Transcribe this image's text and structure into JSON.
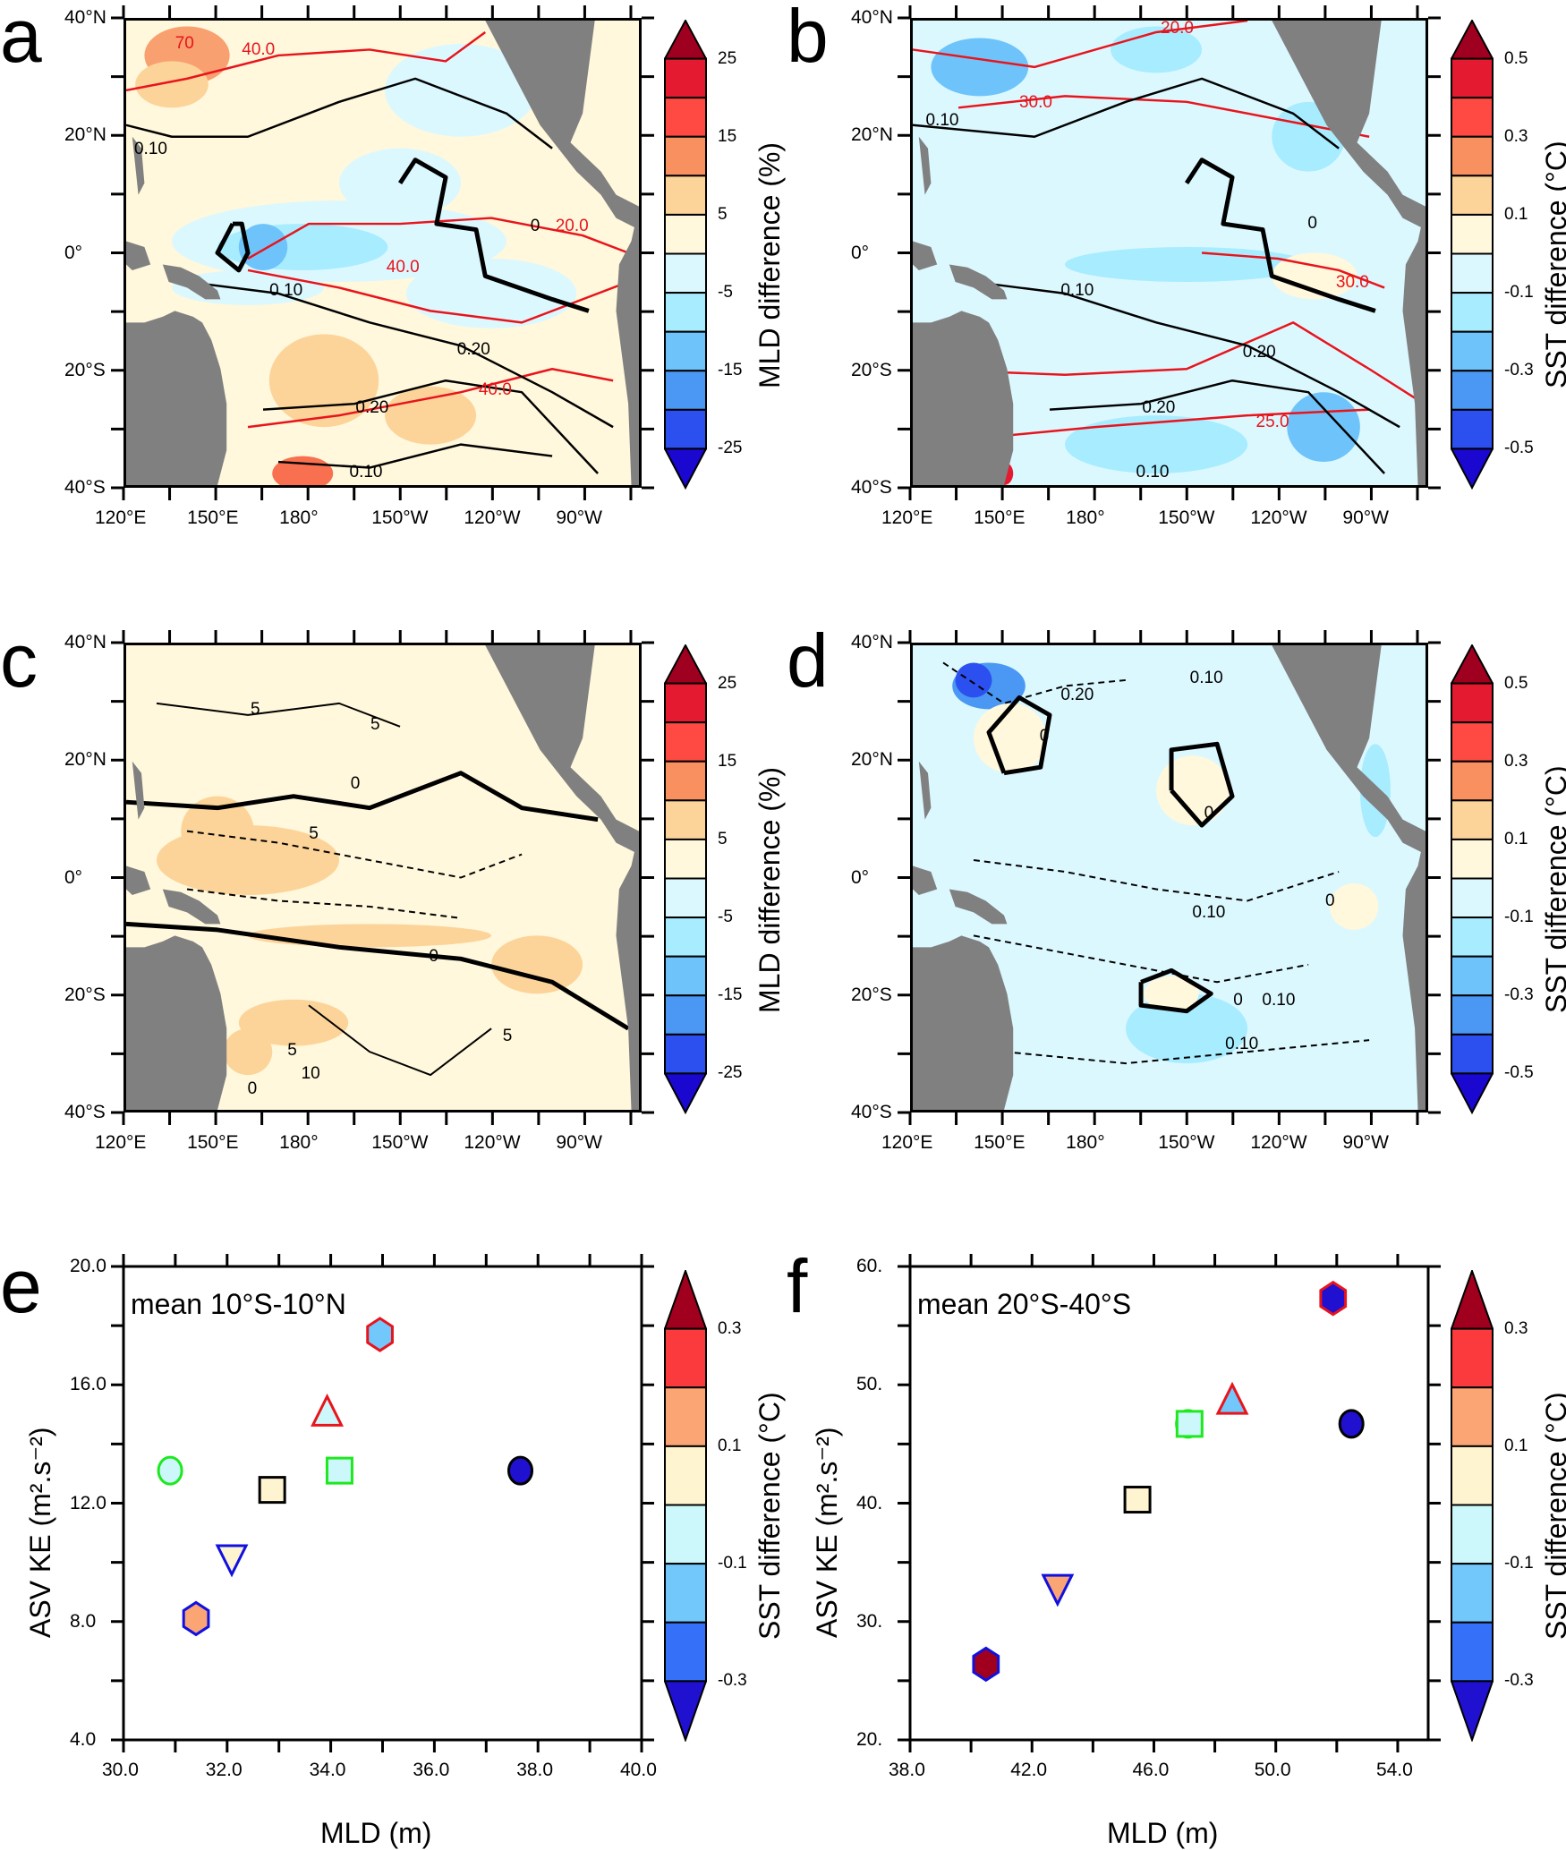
{
  "panels": {
    "a": {
      "letter": "a"
    },
    "b": {
      "letter": "b"
    },
    "c": {
      "letter": "c"
    },
    "d": {
      "letter": "d"
    },
    "e": {
      "letter": "e"
    },
    "f": {
      "letter": "f"
    }
  },
  "map_axes": {
    "lat_labels": [
      "40°N",
      "20°N",
      "0°",
      "20°S",
      "40°S"
    ],
    "lon_labels": [
      "120°E",
      "150°E",
      "180°",
      "150°W",
      "120°W",
      "90°W"
    ]
  },
  "colorbars": {
    "mld": {
      "title": "MLD difference (%)",
      "labels": [
        "25",
        "15",
        "5",
        "-5",
        "-15",
        "-25"
      ],
      "colors": [
        "#a00020",
        "#e31a30",
        "#ff4a44",
        "#f89060",
        "#fcd49a",
        "#fff8dc",
        "#dcf8ff",
        "#a8ecff",
        "#6ec4fa",
        "#4a98f4",
        "#2c50f0",
        "#1a08d0"
      ]
    },
    "sst_map": {
      "title": "SST difference (°C)",
      "labels": [
        "0.5",
        "0.3",
        "0.1",
        "-0.1",
        "-0.3",
        "-0.5"
      ],
      "colors": [
        "#a00020",
        "#e31a30",
        "#ff4a44",
        "#f89060",
        "#fcd49a",
        "#fff8dc",
        "#dcf8ff",
        "#a8ecff",
        "#6ec4fa",
        "#4a98f4",
        "#2c50f0",
        "#1a08d0"
      ]
    },
    "sst_scatter": {
      "title": "SST difference (°C)",
      "labels": [
        "0.3",
        "0.1",
        "-0.1",
        "-0.3"
      ],
      "colors": [
        "#a0001e",
        "#fb3a3e",
        "#fca574",
        "#fff4d0",
        "#ccf8fc",
        "#72c8fb",
        "#3570f8",
        "#2010d0"
      ]
    }
  },
  "contour_labels": {
    "a": [
      "70",
      "40.0",
      "0.10",
      "0",
      "20.0",
      "40.0",
      "0.10",
      "0.20",
      "40.0",
      "0.20",
      "0.10"
    ],
    "b": [
      "20.0",
      "0.10",
      "30.0",
      "0",
      "0.10",
      "30.0",
      "0.20",
      "0.20",
      "25.0",
      "0.10"
    ],
    "c": [
      "5",
      "5",
      "0",
      "5",
      "0",
      "5",
      "5",
      "10",
      "0"
    ],
    "d": [
      "0.20",
      "0.10",
      "0",
      "0",
      "0.10",
      "0",
      "0",
      "0.10",
      "0.10"
    ]
  },
  "chart_data": [
    {
      "type": "heatmap",
      "panel": "a",
      "colorbar": "MLD difference (%)",
      "xlim": [
        "120°E",
        "71°W"
      ],
      "ylim": [
        "40°S",
        "40°N"
      ],
      "contours": "black and red lines"
    },
    {
      "type": "heatmap",
      "panel": "b",
      "colorbar": "SST difference (°C)",
      "xlim": [
        "120°E",
        "71°W"
      ],
      "ylim": [
        "40°S",
        "40°N"
      ]
    },
    {
      "type": "heatmap",
      "panel": "c",
      "colorbar": "MLD difference (%)",
      "xlim": [
        "120°E",
        "71°W"
      ],
      "ylim": [
        "40°S",
        "40°N"
      ]
    },
    {
      "type": "heatmap",
      "panel": "d",
      "colorbar": "SST difference (°C)",
      "xlim": [
        "120°E",
        "71°W"
      ],
      "ylim": [
        "40°S",
        "40°N"
      ]
    },
    {
      "type": "scatter",
      "panel": "e",
      "title": "mean 10°S-10°N",
      "xlabel": "MLD (m)",
      "ylabel": "ASV KE (m².s⁻²)",
      "xlim": [
        30,
        40
      ],
      "ylim": [
        4,
        20
      ],
      "xticks": [
        "30.0",
        "32.0",
        "34.0",
        "36.0",
        "38.0",
        "40.0"
      ],
      "yticks": [
        "4.0",
        "8.0",
        "12.0",
        "16.0",
        "20.0"
      ],
      "points": [
        {
          "x": 34.95,
          "y": 17.7,
          "marker": "hexagon",
          "fill": "#72c8fb",
          "edge": "#e8141c"
        },
        {
          "x": 33.93,
          "y": 15.0,
          "marker": "triangle",
          "fill": "#ccf8fc",
          "edge": "#e8141c"
        },
        {
          "x": 30.9,
          "y": 13.1,
          "marker": "circle",
          "fill": "#ccf8fc",
          "edge": "#1ee81e"
        },
        {
          "x": 34.17,
          "y": 13.1,
          "marker": "square",
          "fill": "#ccf8fc",
          "edge": "#1ee81e"
        },
        {
          "x": 32.87,
          "y": 12.45,
          "marker": "square",
          "fill": "#fff4d0",
          "edge": "#000000"
        },
        {
          "x": 37.66,
          "y": 13.1,
          "marker": "circle",
          "fill": "#2010d0",
          "edge": "#000000"
        },
        {
          "x": 32.09,
          "y": 10.2,
          "marker": "triangle-down",
          "fill": "#fff4d0",
          "edge": "#1010e0"
        },
        {
          "x": 31.4,
          "y": 8.1,
          "marker": "hexagon",
          "fill": "#fca574",
          "edge": "#1010e0"
        }
      ]
    },
    {
      "type": "scatter",
      "panel": "f",
      "title": "mean 20°S-40°S",
      "xlabel": "MLD (m)",
      "ylabel": "ASV KE (m².s⁻²)",
      "xlim": [
        38,
        55
      ],
      "ylim": [
        20,
        60
      ],
      "xticks": [
        "38.0",
        "42.0",
        "46.0",
        "50.0",
        "54.0"
      ],
      "yticks": [
        "20.",
        "30.",
        "40.",
        "50.",
        "60."
      ],
      "points": [
        {
          "x": 51.88,
          "y": 57.3,
          "marker": "hexagon",
          "fill": "#2010d0",
          "edge": "#e8141c"
        },
        {
          "x": 48.57,
          "y": 48.5,
          "marker": "triangle",
          "fill": "#72c8fb",
          "edge": "#e8141c"
        },
        {
          "x": 47.12,
          "y": 46.7,
          "marker": "circle",
          "fill": "#ccf8fc",
          "edge": "#1ee81e"
        },
        {
          "x": 47.17,
          "y": 46.7,
          "marker": "square",
          "fill": "#ccf8fc",
          "edge": "#1ee81e"
        },
        {
          "x": 52.48,
          "y": 46.7,
          "marker": "circle",
          "fill": "#2010d0",
          "edge": "#000000"
        },
        {
          "x": 45.46,
          "y": 40.3,
          "marker": "square",
          "fill": "#fff4d0",
          "edge": "#000000"
        },
        {
          "x": 42.84,
          "y": 33.0,
          "marker": "triangle-down",
          "fill": "#fca574",
          "edge": "#1010e0"
        },
        {
          "x": 40.49,
          "y": 26.4,
          "marker": "hexagon",
          "fill": "#a0001e",
          "edge": "#1010e0"
        }
      ]
    }
  ]
}
